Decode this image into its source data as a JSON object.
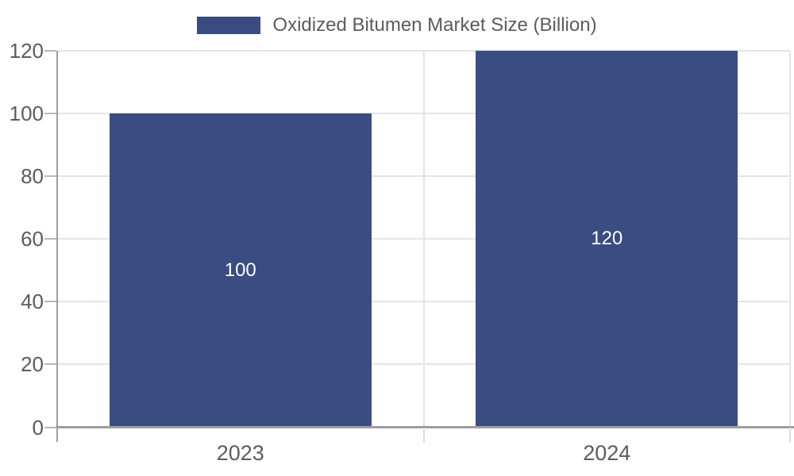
{
  "chart_data": {
    "type": "bar",
    "title": "",
    "legend_label": "Oxidized Bitumen Market Size (Billion)",
    "categories": [
      "2023",
      "2024"
    ],
    "series": [
      {
        "name": "Oxidized Bitumen Market Size (Billion)",
        "values": [
          100,
          120
        ]
      }
    ],
    "bar_labels": [
      "100",
      "120"
    ],
    "ylim": [
      0,
      120
    ],
    "ytick_step": 20,
    "ytick_labels": [
      "0",
      "20",
      "40",
      "60",
      "80",
      "100",
      "120"
    ],
    "grid": true,
    "legend_position": "top-center",
    "colors": {
      "bar": "#3a4c82",
      "grid": "#e4e4e8",
      "axis": "#9e9e9e",
      "tick": "#b9b9b9",
      "tick_light": "#dcdce0",
      "text": "#5c5c5c",
      "bar_label": "#ffffff"
    }
  }
}
